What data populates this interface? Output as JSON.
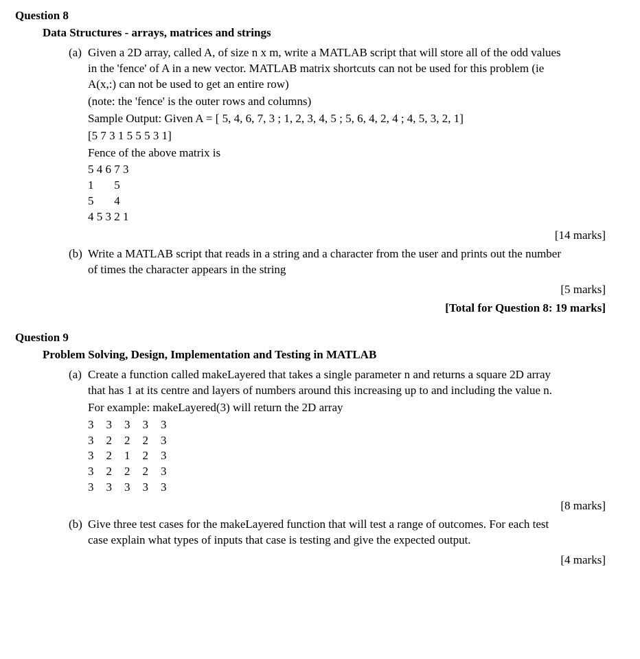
{
  "q8": {
    "heading": "Question 8",
    "title": "Data Structures - arrays, matrices and strings",
    "a": {
      "label": "(a)",
      "p1": "Given a 2D array, called A, of size n x m, write a MATLAB script that will store all of the odd values in the 'fence' of A in a new vector. MATLAB matrix shortcuts can not be used for this problem (ie A(x,:) can not be used to get an entire row)",
      "p2": "(note: the 'fence' is the outer rows and columns)",
      "p3": "Sample Output: Given A = [ 5, 4, 6, 7, 3 ; 1, 2, 3, 4, 5 ; 5, 6, 4, 2, 4 ; 4, 5, 3, 2, 1]",
      "p4": "[5 7 3 1 5 5 5 3 1]",
      "p5": "Fence of the above matrix is",
      "fence": "5 4 6 7 3\n1       5\n5       4\n4 5 3 2 1",
      "marks": "[14 marks]"
    },
    "b": {
      "label": "(b)",
      "p1": "Write a MATLAB script that reads in a string and a character from the user and prints out the number of times the character appears in the string",
      "marks": "[5 marks]"
    },
    "total": "[Total for Question 8:  19 marks]"
  },
  "q9": {
    "heading": "Question 9",
    "title": "Problem Solving, Design, Implementation and Testing in MATLAB",
    "a": {
      "label": "(a)",
      "p1": "Create a function called makeLayered that takes a single parameter n and returns a square 2D array that has 1 at its centre and layers of numbers around this increasing up to and including the value n.",
      "p2": "For example: makeLayered(3) will return the 2D array",
      "matrix": [
        [
          "3",
          "3",
          "3",
          "3",
          "3"
        ],
        [
          "3",
          "2",
          "2",
          "2",
          "3"
        ],
        [
          "3",
          "2",
          "1",
          "2",
          "3"
        ],
        [
          "3",
          "2",
          "2",
          "2",
          "3"
        ],
        [
          "3",
          "3",
          "3",
          "3",
          "3"
        ]
      ],
      "marks": "[8 marks]"
    },
    "b": {
      "label": "(b)",
      "p1": "Give three test cases for the makeLayered function that will test a range of outcomes. For each test case explain what types of inputs that case is testing and give the expected output.",
      "marks": "[4 marks]"
    }
  }
}
